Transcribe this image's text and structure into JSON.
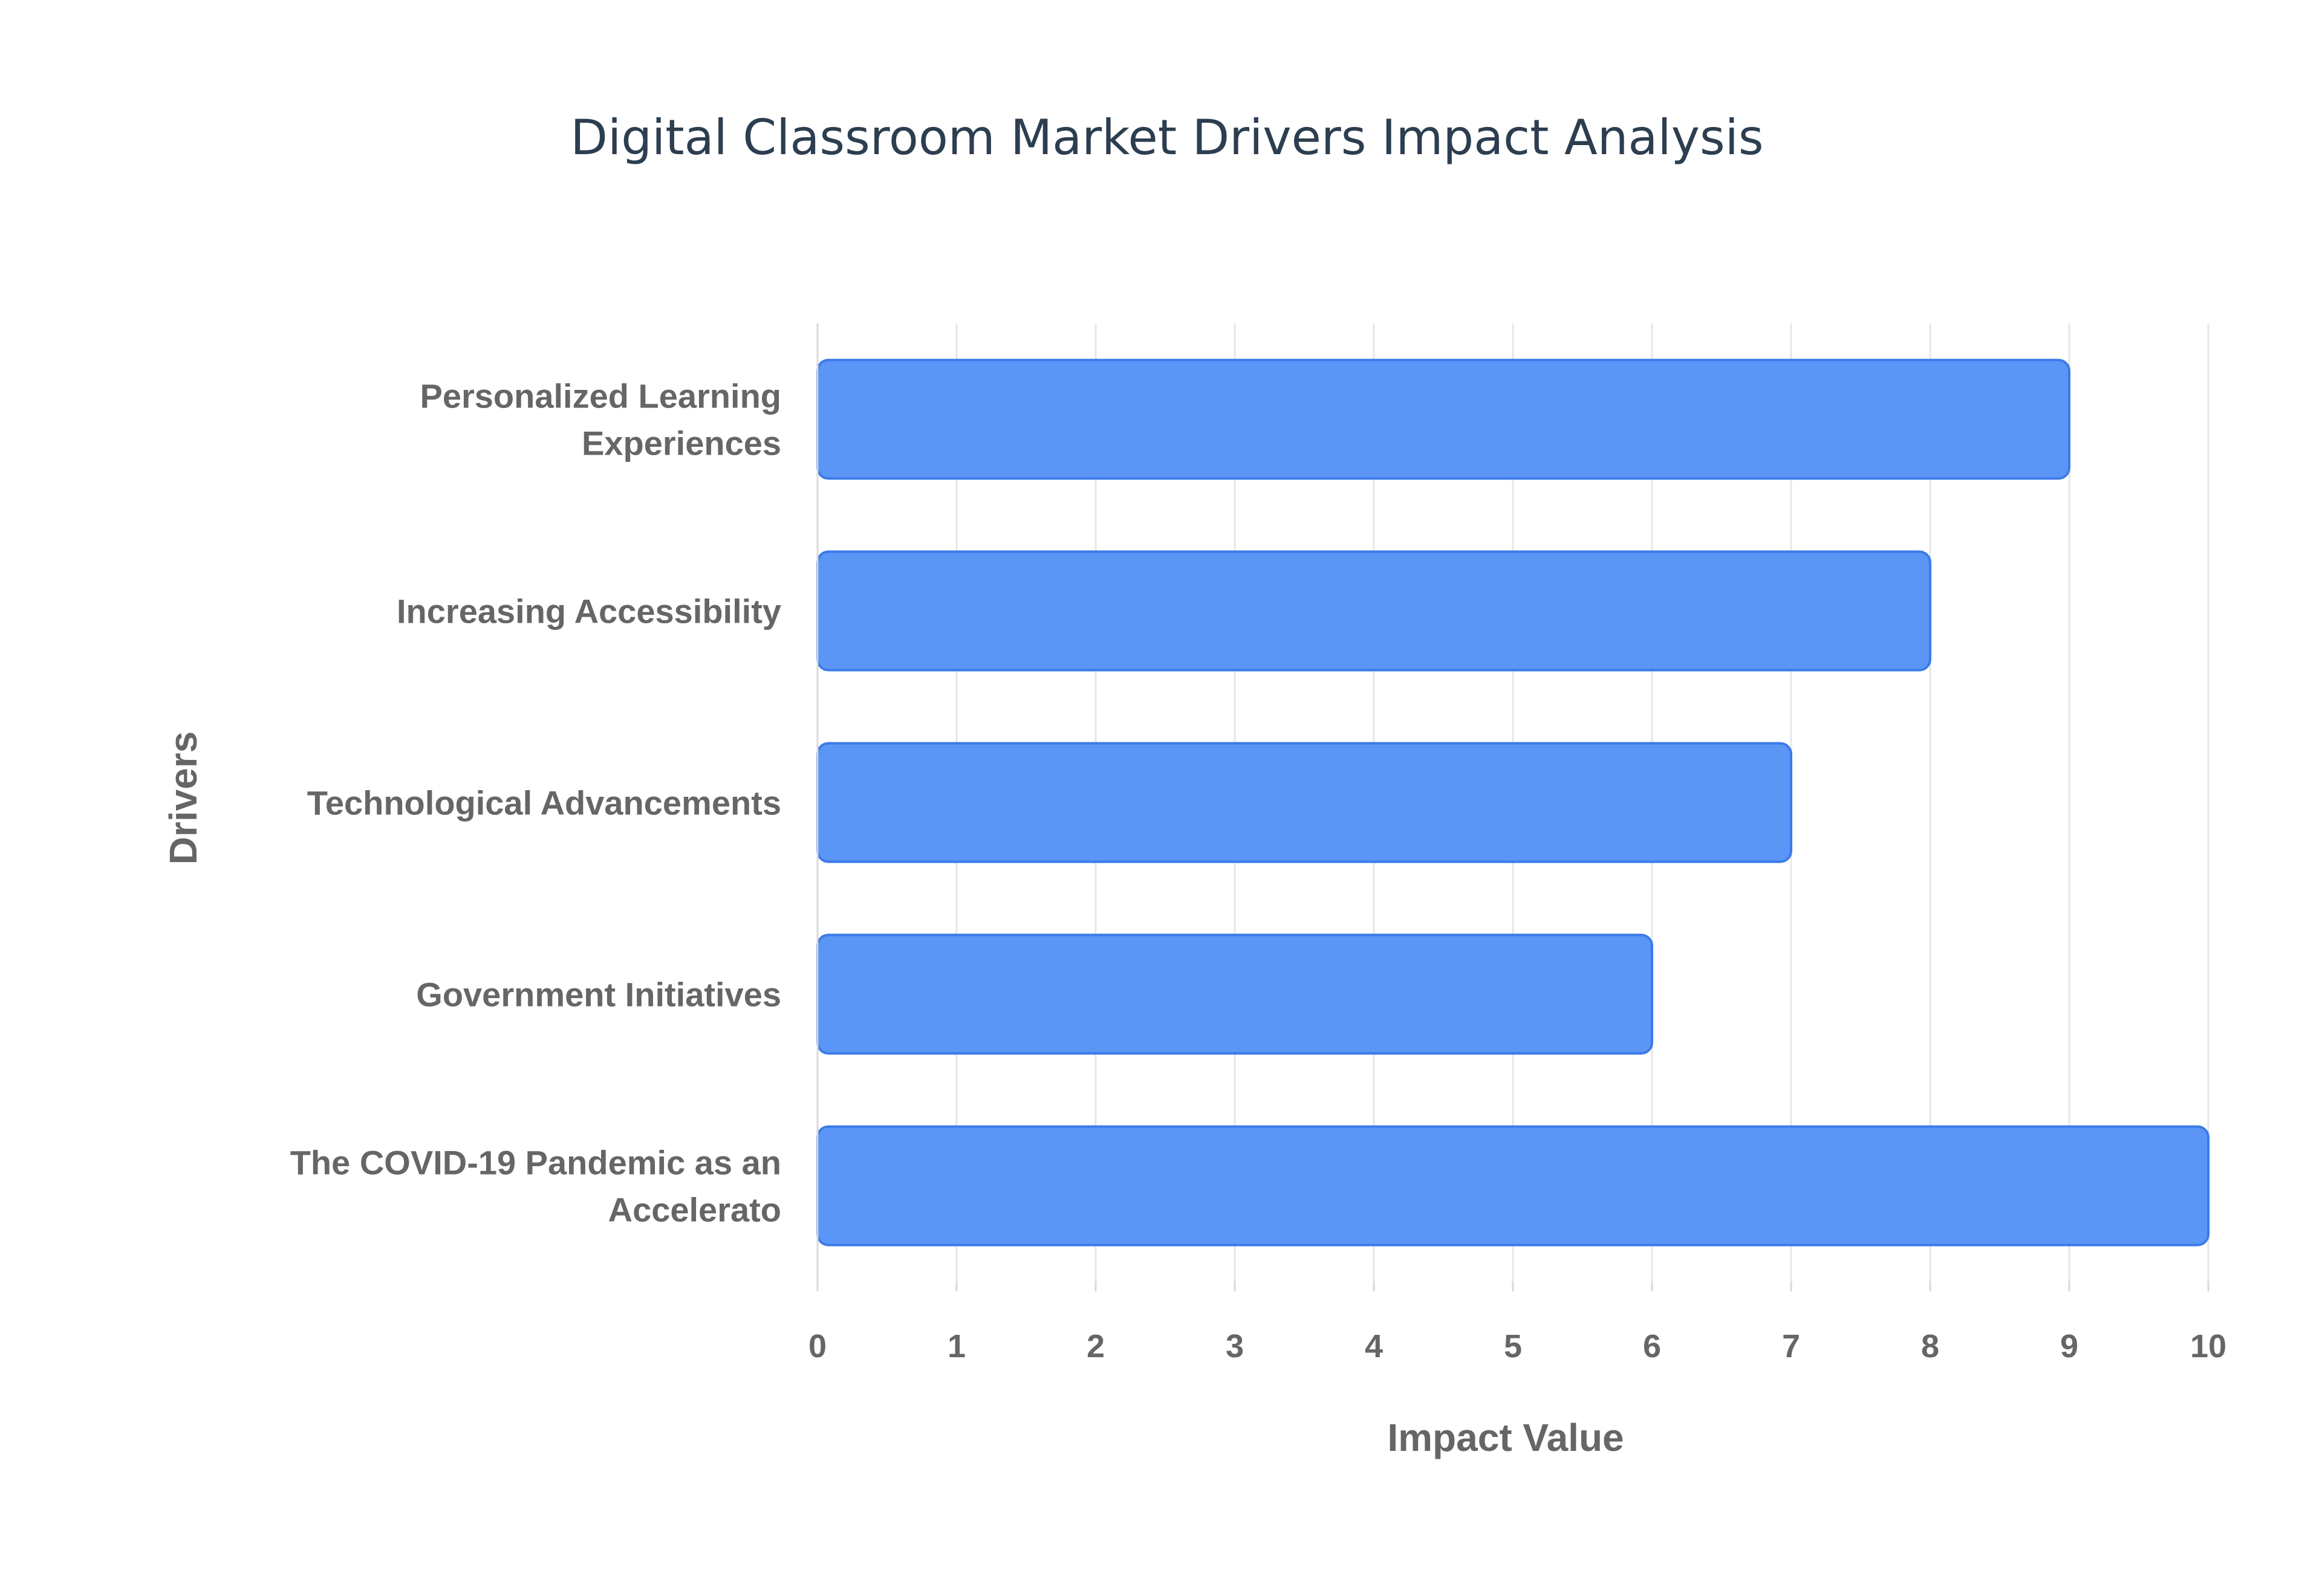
{
  "chart_data": {
    "type": "bar",
    "orientation": "horizontal",
    "title": "Digital Classroom Market Drivers Impact Analysis",
    "xlabel": "Impact Value",
    "ylabel": "Drivers",
    "categories": [
      [
        "Personalized Learning",
        "Experiences"
      ],
      [
        "Increasing Accessibility"
      ],
      [
        "Technological Advancements"
      ],
      [
        "Government Initiatives"
      ],
      [
        "The COVID-19 Pandemic as an",
        "Accelerato"
      ]
    ],
    "values": [
      9,
      8,
      7,
      6,
      10
    ],
    "xlim": [
      0,
      10
    ],
    "xticks": [
      "0",
      "1",
      "2",
      "3",
      "4",
      "5",
      "6",
      "7",
      "8",
      "9",
      "10"
    ],
    "grid": "vertical",
    "legend": "none"
  },
  "colors": {
    "bar_fill": "#5b95f6",
    "bar_stroke": "#3b7be8",
    "grid": "#e6e6e6",
    "axis_line": "#d9d9d9",
    "title": "#2c3e50",
    "label": "#666666"
  }
}
